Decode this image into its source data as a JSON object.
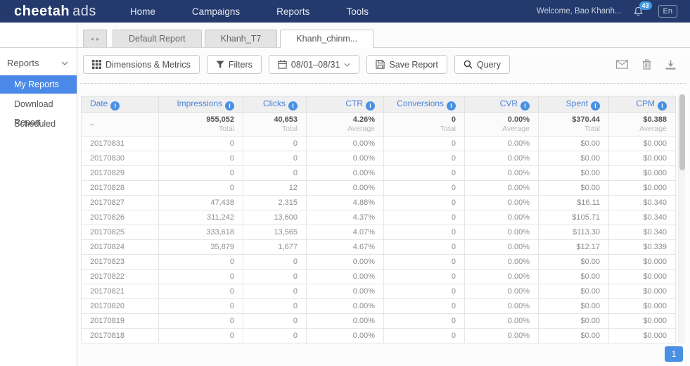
{
  "navbar": {
    "logo_bold": "cheetah",
    "logo_light": "ads",
    "items": [
      {
        "label": "Home"
      },
      {
        "label": "Campaigns"
      },
      {
        "label": "Reports"
      },
      {
        "label": "Tools"
      }
    ],
    "welcome": "Welcome,  Bao Khanh...",
    "notification_count": "43",
    "language": "En"
  },
  "tabs": {
    "items": [
      {
        "label": "Default Report",
        "active": false
      },
      {
        "label": "Khanh_T7",
        "active": false
      },
      {
        "label": "Khanh_chinm...",
        "active": true
      }
    ]
  },
  "sidebar": {
    "section_label": "Reports",
    "items": [
      {
        "label": "My Reports",
        "active": true
      },
      {
        "label": "Download Report",
        "active": false
      },
      {
        "label": "Scheduled",
        "active": false
      }
    ]
  },
  "toolbar": {
    "dimensions_metrics_label": "Dimensions & Metrics",
    "filters_label": "Filters",
    "date_range_label": "08/01–08/31",
    "save_report_label": "Save Report",
    "query_label": "Query"
  },
  "table": {
    "columns": [
      "Date",
      "Impressions",
      "Clicks",
      "CTR",
      "Conversions",
      "CVR",
      "Spent",
      "CPM"
    ],
    "summary": {
      "date": "–",
      "values": [
        {
          "value": "955,052",
          "label": "Total"
        },
        {
          "value": "40,653",
          "label": "Total"
        },
        {
          "value": "4.26%",
          "label": "Average"
        },
        {
          "value": "0",
          "label": "Total"
        },
        {
          "value": "0.00%",
          "label": "Average"
        },
        {
          "value": "$370.44",
          "label": "Total"
        },
        {
          "value": "$0.388",
          "label": "Average"
        }
      ]
    },
    "rows": [
      [
        "20170831",
        "0",
        "0",
        "0.00%",
        "0",
        "0.00%",
        "$0.00",
        "$0.000"
      ],
      [
        "20170830",
        "0",
        "0",
        "0.00%",
        "0",
        "0.00%",
        "$0.00",
        "$0.000"
      ],
      [
        "20170829",
        "0",
        "0",
        "0.00%",
        "0",
        "0.00%",
        "$0.00",
        "$0.000"
      ],
      [
        "20170828",
        "0",
        "12",
        "0.00%",
        "0",
        "0.00%",
        "$0.00",
        "$0.000"
      ],
      [
        "20170827",
        "47,438",
        "2,315",
        "4.88%",
        "0",
        "0.00%",
        "$16.11",
        "$0.340"
      ],
      [
        "20170826",
        "311,242",
        "13,600",
        "4.37%",
        "0",
        "0.00%",
        "$105.71",
        "$0.340"
      ],
      [
        "20170825",
        "333,618",
        "13,565",
        "4.07%",
        "0",
        "0.00%",
        "$113.30",
        "$0.340"
      ],
      [
        "20170824",
        "35,879",
        "1,677",
        "4.67%",
        "0",
        "0.00%",
        "$12.17",
        "$0.339"
      ],
      [
        "20170823",
        "0",
        "0",
        "0.00%",
        "0",
        "0.00%",
        "$0.00",
        "$0.000"
      ],
      [
        "20170822",
        "0",
        "0",
        "0.00%",
        "0",
        "0.00%",
        "$0.00",
        "$0.000"
      ],
      [
        "20170821",
        "0",
        "0",
        "0.00%",
        "0",
        "0.00%",
        "$0.00",
        "$0.000"
      ],
      [
        "20170820",
        "0",
        "0",
        "0.00%",
        "0",
        "0.00%",
        "$0.00",
        "$0.000"
      ],
      [
        "20170819",
        "0",
        "0",
        "0.00%",
        "0",
        "0.00%",
        "$0.00",
        "$0.000"
      ],
      [
        "20170818",
        "0",
        "0",
        "0.00%",
        "0",
        "0.00%",
        "$0.00",
        "$0.000"
      ]
    ]
  },
  "pagination": {
    "current_page": "1"
  },
  "colors": {
    "navbar_bg": "#243a6c",
    "accent_blue": "#4a90e2",
    "sidebar_active_bg": "#4a89e8",
    "header_text_blue": "#4a82d8",
    "table_border": "#e6e6e6"
  }
}
